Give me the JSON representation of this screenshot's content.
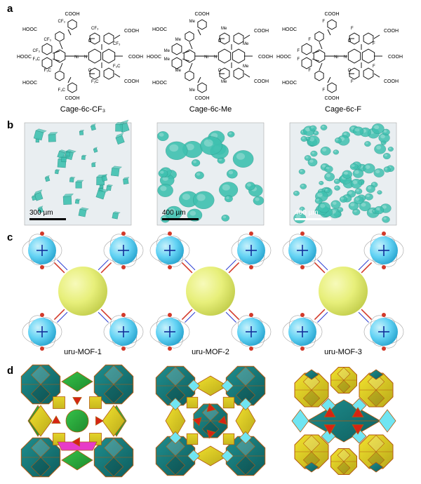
{
  "panel_labels": {
    "a": "a",
    "b": "b",
    "c": "c",
    "d": "d"
  },
  "row_a": {
    "captions": [
      "Cage-6c-CF₃",
      "Cage-6c-Me",
      "Cage-6c-F"
    ],
    "substituents": {
      "left": [
        "F₃C",
        "CF₃"
      ],
      "mid": [
        "Me"
      ],
      "right": [
        "F"
      ]
    },
    "label_cooh": "COOH",
    "label_hooc": "HOOC",
    "label_o": "O",
    "label_n": "N",
    "label_ni": "Ni",
    "skeleton_stroke": "#000000",
    "skeleton_stroke_width": 0.9
  },
  "row_b": {
    "bg_color": "#e9eef1",
    "crystal_color": "#3fc1b0",
    "crystal_edge": "#2a9185",
    "scale_labels": [
      "300 µm",
      "400 µm",
      "400 µm"
    ]
  },
  "row_c": {
    "captions": [
      "uru-MOF-1",
      "uru-MOF-2",
      "uru-MOF-3"
    ],
    "small_sphere_fill": "#63d2f4",
    "small_sphere_shade": "#2aa6d0",
    "big_sphere_fill": "#e7ef7a",
    "big_sphere_shade": "#c4cf4e",
    "cage_stroke": "#7a7a7a",
    "accent_red": "#d23a2a",
    "accent_blue": "#2a3bd2",
    "cross_color": "#12309a"
  },
  "row_d": {
    "teal": "#1f8e8e",
    "teal_dark": "#0e5e5e",
    "yellow": "#f2e22e",
    "yellow_dark": "#b9a91a",
    "cyan": "#70e5f2",
    "red": "#d62413",
    "green": "#35c24a",
    "green_dark": "#1f8a2d",
    "magenta": "#e73bc8",
    "edge": "#b35a10"
  },
  "colors": {
    "background": "#ffffff",
    "text": "#000000"
  }
}
